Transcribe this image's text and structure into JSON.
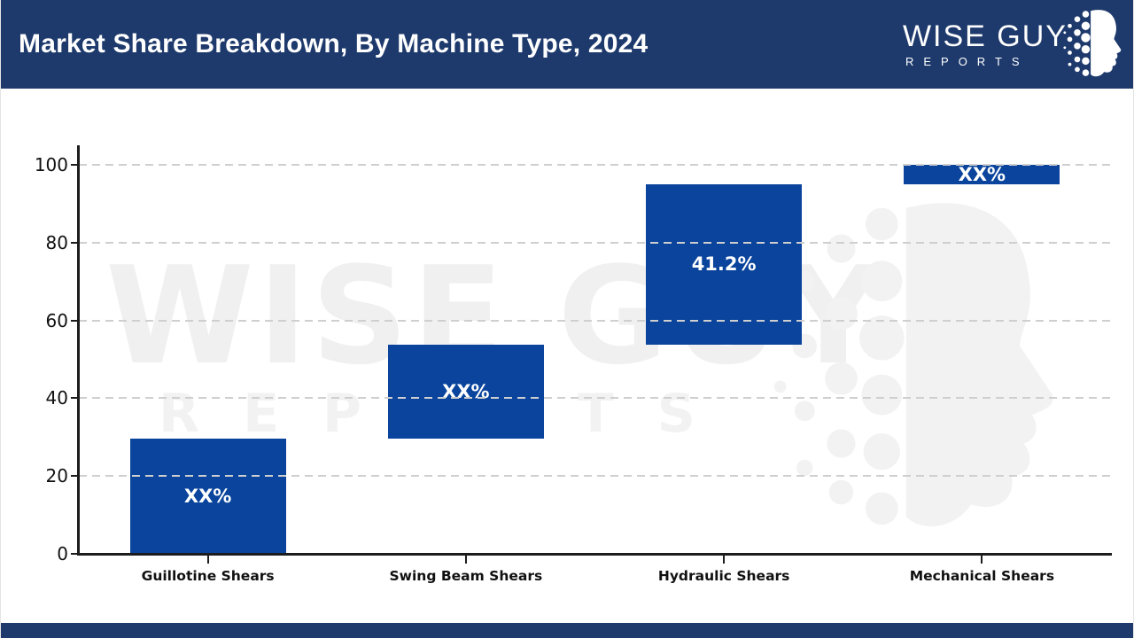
{
  "header": {
    "title": "Market Share Breakdown, By Machine Type, 2024"
  },
  "logo": {
    "name": "WISE GUY",
    "tagline": "REPORTS"
  },
  "watermark": {
    "line1": "WISE GUY",
    "line2": "R E P O R T S"
  },
  "chart_data": {
    "type": "bar",
    "subtype": "floating-waterfall",
    "title": "Market Share Breakdown, By Machine Type, 2024",
    "xlabel": "",
    "ylabel": "",
    "ylim": [
      0,
      105
    ],
    "yticks": [
      0,
      20,
      40,
      60,
      80,
      100
    ],
    "grid": "horizontal-dashed-over-bars",
    "legend": "none",
    "bar_color": "#0a449c",
    "categories": [
      "Guillotine Shears",
      "Swing Beam Shears",
      "Hydraulic Shears",
      "Mechanical Shears"
    ],
    "bars": [
      {
        "category": "Guillotine Shears",
        "start": 0,
        "end": 29.6,
        "label": "XX%"
      },
      {
        "category": "Swing Beam Shears",
        "start": 29.6,
        "end": 53.8,
        "label": "XX%"
      },
      {
        "category": "Hydraulic Shears",
        "start": 53.8,
        "end": 95.0,
        "label": "41.2%"
      },
      {
        "category": "Mechanical Shears",
        "start": 95.0,
        "end": 100.0,
        "label": "XX%"
      }
    ]
  },
  "colors": {
    "header_bg": "#1e3a6c",
    "footer_bg": "#1e3a6c",
    "bar": "#0a449c",
    "grid": "#cfcfcf",
    "axis": "#1c1c1c",
    "watermark": "#f0f0f0"
  }
}
